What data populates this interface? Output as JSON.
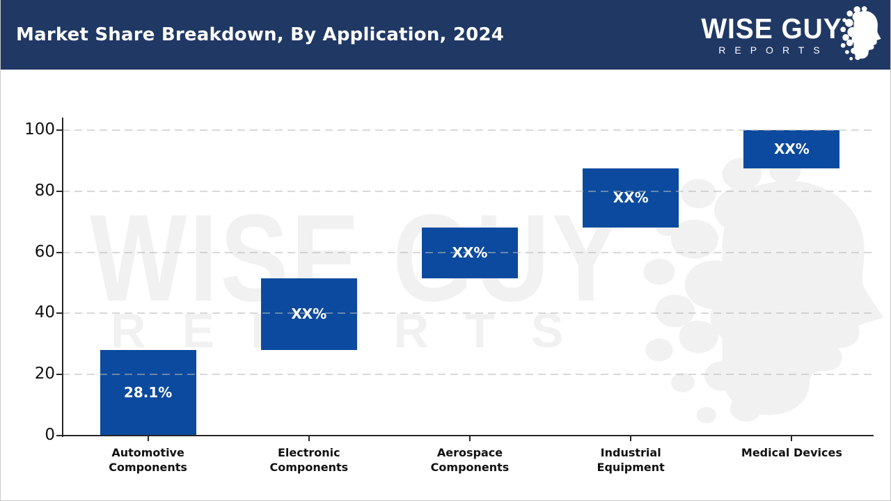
{
  "header": {
    "title": "Market Share Breakdown, By Application, 2024",
    "logo": {
      "line1": "WISE GUY",
      "line2": "REPORTS"
    }
  },
  "watermark": {
    "line1": "WISE GUY",
    "line2": "REPORTS"
  },
  "colors": {
    "header_bg": "#203864",
    "bar": "#0b4a9e",
    "bar_label_text": "#ffffff",
    "axis": "#262626",
    "grid": "#dddddd",
    "watermark": "#f1f1f1"
  },
  "chart_data": {
    "type": "bar",
    "subtype": "waterfall",
    "title": "Market Share Breakdown, By Application, 2024",
    "categories": [
      "Automotive Components",
      "Electronic Components",
      "Aerospace Components",
      "Industrial Equipment",
      "Medical Devices"
    ],
    "category_lines": [
      [
        "Automotive",
        "Components"
      ],
      [
        "Electronic",
        "Components"
      ],
      [
        "Aerospace",
        "Components"
      ],
      [
        "Industrial",
        "Equipment"
      ],
      [
        "Medical Devices"
      ]
    ],
    "segments": [
      {
        "category": "Automotive Components",
        "start": 0,
        "end": 28.1,
        "label": "28.1%"
      },
      {
        "category": "Electronic Components",
        "start": 28.1,
        "end": 51.5,
        "label": "XX%"
      },
      {
        "category": "Aerospace Components",
        "start": 51.5,
        "end": 68.2,
        "label": "XX%"
      },
      {
        "category": "Industrial Equipment",
        "start": 68.2,
        "end": 87.5,
        "label": "XX%"
      },
      {
        "category": "Medical Devices",
        "start": 87.5,
        "end": 100,
        "label": "XX%"
      }
    ],
    "yticks": [
      0,
      20,
      40,
      60,
      80,
      100
    ],
    "ylim": [
      0,
      104
    ],
    "xlabel": "",
    "ylabel": "",
    "grid": "dashed-horizontal",
    "legend": "none"
  }
}
